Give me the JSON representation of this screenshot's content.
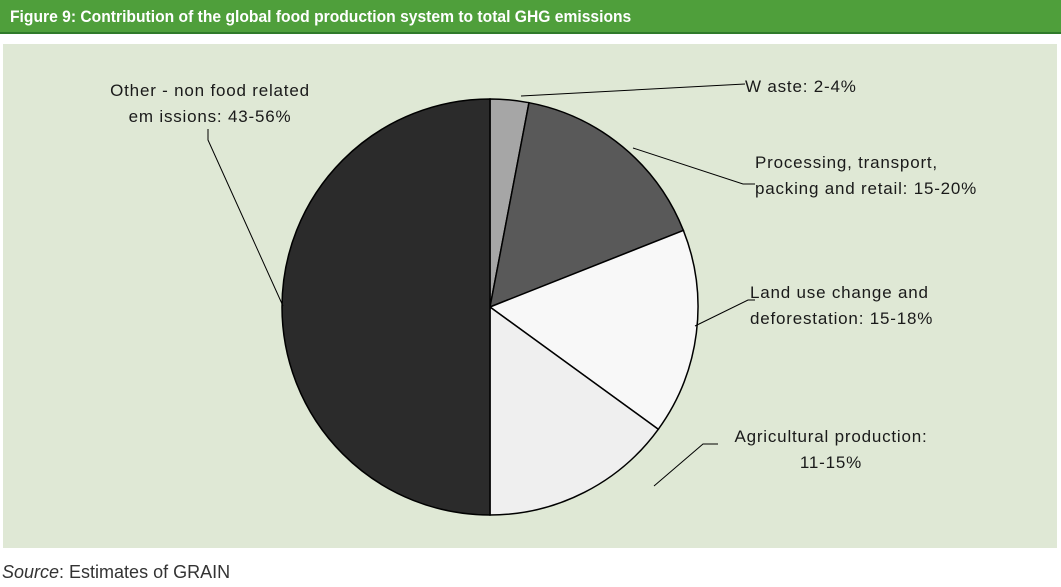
{
  "figure": {
    "title": "Figure 9: Contribution of the global food production system to total GHG emissions",
    "source_prefix": "Source",
    "source_text": ": Estimates of GRAIN"
  },
  "chart_data": {
    "type": "pie",
    "title": "Figure 9: Contribution of the global food production system to total GHG emissions",
    "slices": [
      {
        "label": "Waste: 2-4%",
        "lines": [
          "W aste: 2-4%"
        ],
        "value": 3,
        "color": "#a6a6a6"
      },
      {
        "label": "Processing, transport, packing and retail: 15-20%",
        "lines": [
          "Processing, transport,",
          "packing and retail: 15-20%"
        ],
        "value": 16,
        "color": "#595959"
      },
      {
        "label": "Land use change and deforestation: 15-18%",
        "lines": [
          "Land use change and",
          "deforestation: 15-18%"
        ],
        "value": 16,
        "color": "#f8f8f8"
      },
      {
        "label": "Agricultural production: 11-15%",
        "lines": [
          "Agricultural  production:",
          "11-15%"
        ],
        "value": 15,
        "color": "#efefef"
      },
      {
        "label": "Other - non food related emissions: 43-56%",
        "lines": [
          "Other - non food related",
          "em issions: 43-56%"
        ],
        "value": 50,
        "color": "#2b2b2b"
      }
    ],
    "start_angle_deg": 0,
    "direction": "clockwise",
    "legend": "none",
    "background_color": "#dfe8d5"
  }
}
